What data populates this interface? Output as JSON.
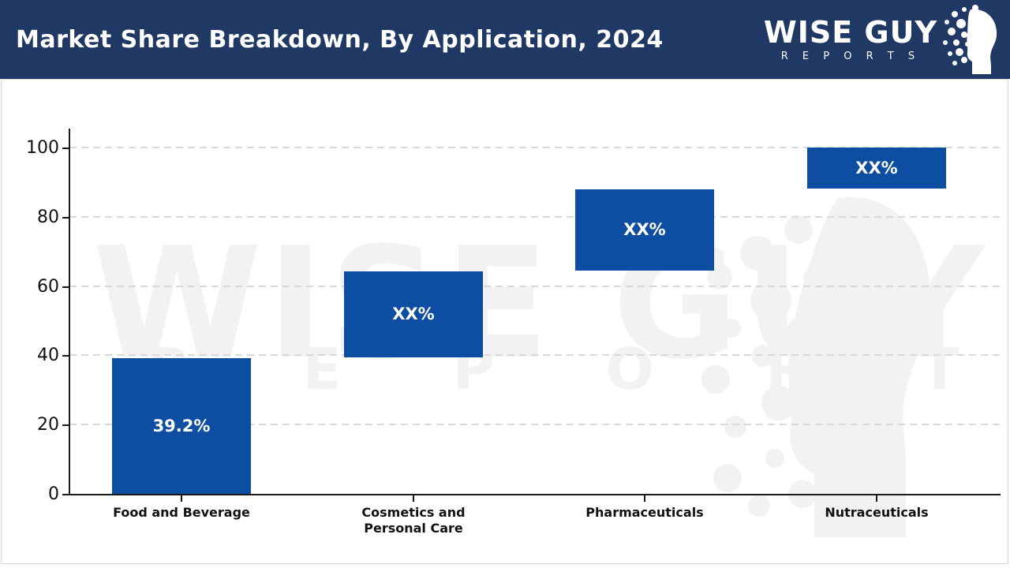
{
  "header": {
    "title": "Market Share Breakdown, By Application, 2024",
    "bg_color": "#203864",
    "logo": {
      "name": "WISE GUY",
      "subtitle": "R E P O R T S"
    }
  },
  "watermark": {
    "line1": "WISE GUY",
    "line2": "R E P O R T S"
  },
  "chart_data": {
    "type": "bar",
    "subtype": "waterfall",
    "title": "Market Share Breakdown, By Application, 2024",
    "categories": [
      "Food and Beverage",
      "Cosmetics and Personal Care",
      "Pharmaceuticals",
      "Nutraceuticals"
    ],
    "series": [
      {
        "name": "Market Share (%)",
        "segments": [
          {
            "category": "Food and Beverage",
            "start": 0,
            "end": 39.2,
            "label": "39.2%"
          },
          {
            "category": "Cosmetics and Personal Care",
            "start": 39.5,
            "end": 64.3,
            "label": "XX%"
          },
          {
            "category": "Pharmaceuticals",
            "start": 64.5,
            "end": 88.0,
            "label": "XX%"
          },
          {
            "category": "Nutraceuticals",
            "start": 88.1,
            "end": 100.0,
            "label": "XX%"
          }
        ]
      }
    ],
    "xlabel": "",
    "ylabel": "",
    "ylim": [
      0,
      100
    ],
    "yticks": [
      0,
      20,
      40,
      60,
      80,
      100
    ],
    "grid": "horizontal-dashed",
    "legend": "none",
    "bar_color": "#0d4ea3",
    "bar_label_color": "#ffffff",
    "axis_color": "#1a1a1a",
    "grid_color": "#d9d9d9"
  }
}
